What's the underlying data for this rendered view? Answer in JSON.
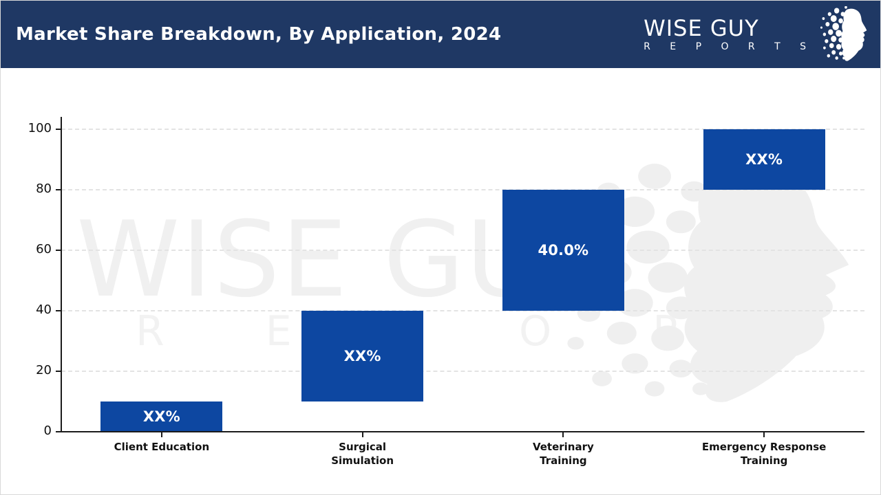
{
  "header": {
    "title": "Market Share Breakdown, By Application, 2024",
    "background_color": "#1F3864",
    "logo": {
      "brand_top": "WISE GUY",
      "brand_bottom": "R E P O R T S"
    }
  },
  "watermark": {
    "line1": "WISE GUY",
    "line2": "R E P O R T S"
  },
  "chart_data": {
    "type": "bar",
    "subtype": "waterfall",
    "title": "Market Share Breakdown, By Application, 2024",
    "categories": [
      "Client Education",
      "Surgical Simulation",
      "Veterinary Training",
      "Emergency Response Training"
    ],
    "category_lines": [
      [
        "Client Education"
      ],
      [
        "Surgical",
        "Simulation"
      ],
      [
        "Veterinary",
        "Training"
      ],
      [
        "Emergency Response",
        "Training"
      ]
    ],
    "segments": [
      {
        "category": "Client Education",
        "start": 0,
        "end": 10,
        "value": 10,
        "label": "XX%"
      },
      {
        "category": "Surgical Simulation",
        "start": 10,
        "end": 40,
        "value": 30,
        "label": "XX%"
      },
      {
        "category": "Veterinary Training",
        "start": 40,
        "end": 80,
        "value": 40,
        "label": "40.0%"
      },
      {
        "category": "Emergency Response Training",
        "start": 80,
        "end": 100,
        "value": 20,
        "label": "XX%"
      }
    ],
    "yticks": [
      0,
      20,
      40,
      60,
      80,
      100
    ],
    "ylim": [
      0,
      100
    ],
    "xlabel": "",
    "ylabel": "",
    "grid": "horizontal-dashed",
    "legend": "none",
    "bar_color": "#0d47a1",
    "bar_label_color": "#ffffff",
    "axis_color": "#1a1a1a",
    "gridline_color": "#e3e3e3"
  }
}
